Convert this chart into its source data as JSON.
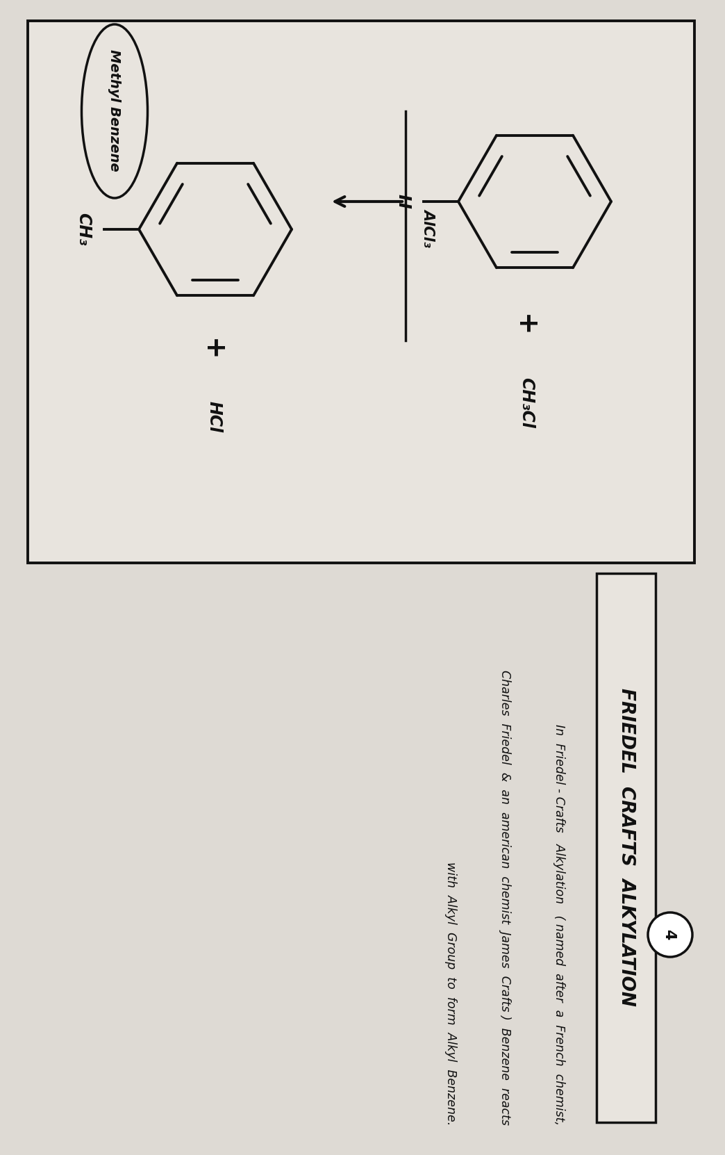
{
  "title_num": "4",
  "title_main": "FRIEDEL  CRAFTS  ALKYLATION",
  "bg_color": "#dedad4",
  "box_bg": "#e8e4de",
  "text_color": "#111111",
  "description_lines": [
    "In  Friedel - Crafts   Alkylation   ( named  after  a  French  chemist,",
    "Charles  Friedel  &  an  american  chemist  James  Crafts )  Benzene  reacts",
    "with  Alkyl  Group  to  form  Alkyl  Benzene."
  ],
  "reactant1_label": "H",
  "reactant2_label": "CH₃Cl",
  "catalyst_label": "AlCl₃",
  "product_label": "CH₃",
  "byproduct_label": "HCl",
  "product_name": "Methyl Benzene",
  "plus1": "+",
  "plus2": "+",
  "arrow_label": "AlCl₃"
}
